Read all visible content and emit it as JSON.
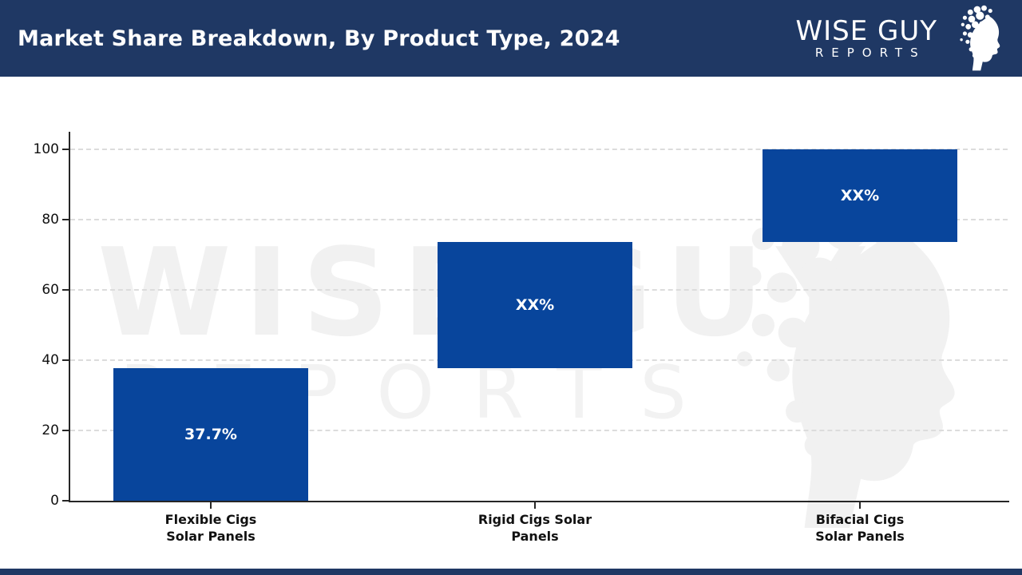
{
  "header": {
    "title": "Market Share Breakdown, By Product Type, 2024",
    "logo": {
      "line1": "WISE GUY",
      "line2": "REPORTS"
    }
  },
  "watermark": {
    "line1": "WISE GUY",
    "line2": "REPORTS"
  },
  "colors": {
    "header_navy": "#1F3864",
    "bar_blue": "#08459C",
    "grid_gray": "#DCDCDC",
    "axis_dark": "#262626",
    "bar_label_white": "#FFFFFF",
    "text_black": "#111111",
    "watermark_gray": "#F1F1F1"
  },
  "chart_data": {
    "type": "bar",
    "subtype": "waterfall-stacked-range",
    "title": "Market Share Breakdown, By Product Type, 2024",
    "categories": [
      "Flexible Cigs Solar Panels",
      "Rigid Cigs Solar Panels",
      "Bifacial Cigs Solar Panels"
    ],
    "category_lines": [
      [
        "Flexible Cigs",
        "Solar Panels"
      ],
      [
        "Rigid Cigs Solar",
        "Panels"
      ],
      [
        "Bifacial Cigs",
        "Solar Panels"
      ]
    ],
    "segments": [
      {
        "start": 0,
        "end": 37.7,
        "label": "37.7%"
      },
      {
        "start": 37.7,
        "end": 73.6,
        "label": "XX%"
      },
      {
        "start": 73.6,
        "end": 100,
        "label": "XX%"
      }
    ],
    "yticks": [
      0,
      20,
      40,
      60,
      80,
      100
    ],
    "ylim": [
      0,
      100
    ],
    "xlabel": "",
    "ylabel": "",
    "grid": "horizontal-dashed",
    "legend": "none"
  }
}
